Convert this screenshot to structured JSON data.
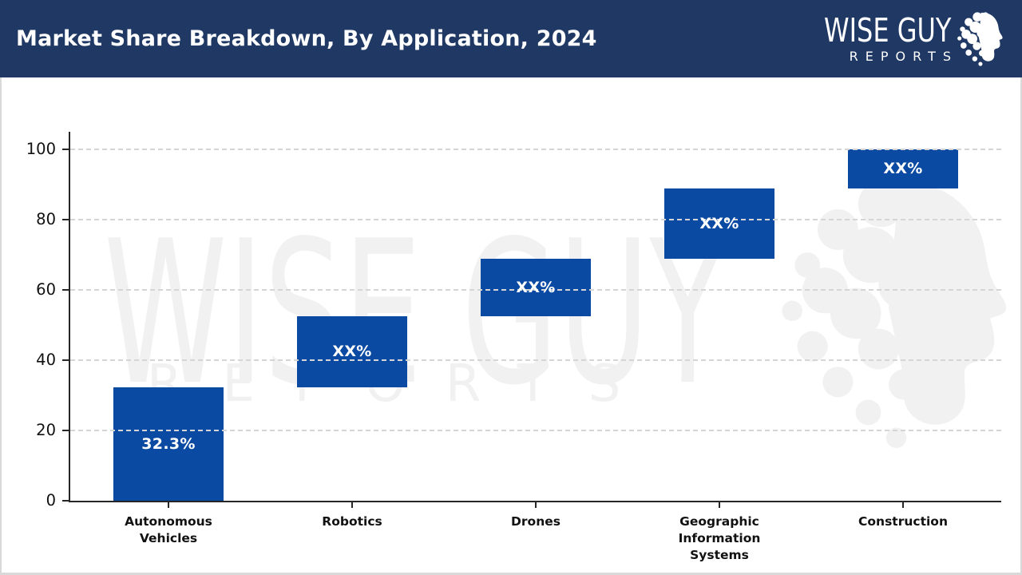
{
  "header": {
    "title": "Market Share Breakdown, By Application, 2024",
    "logo": {
      "name": "WISE GUY",
      "sub": "REPORTS"
    }
  },
  "watermark": {
    "name": "WISE GUY",
    "sub": "REPORTS"
  },
  "colors": {
    "header_bg": "#1f3864",
    "header_text": "#ffffff",
    "bar": "#0b4aa2",
    "bar_label": "#ffffff",
    "grid": "#d5d5d5",
    "axis": "#262626",
    "tick_label": "#111111",
    "watermark": "#f1f1f1",
    "page_border": "#d9d9d9"
  },
  "chart_data": {
    "type": "bar",
    "subtype": "waterfall",
    "title": "Market Share Breakdown, By Application, 2024",
    "categories": [
      "Autonomous\nVehicles",
      "Robotics",
      "Drones",
      "Geographic\nInformation\nSystems",
      "Construction"
    ],
    "segments": [
      {
        "category": "Autonomous Vehicles",
        "start": 0,
        "end": 32.3,
        "label": "32.3%"
      },
      {
        "category": "Robotics",
        "start": 32.3,
        "end": 52.5,
        "label": "XX%"
      },
      {
        "category": "Drones",
        "start": 52.5,
        "end": 68.9,
        "label": "XX%"
      },
      {
        "category": "Geographic Information Systems",
        "start": 68.9,
        "end": 88.9,
        "label": "XX%"
      },
      {
        "category": "Construction",
        "start": 88.9,
        "end": 100,
        "label": "XX%"
      }
    ],
    "ylim": [
      0,
      100
    ],
    "yticks": [
      0,
      20,
      40,
      60,
      80,
      100
    ],
    "grid": true,
    "legend": false,
    "xlabel": "",
    "ylabel": ""
  }
}
